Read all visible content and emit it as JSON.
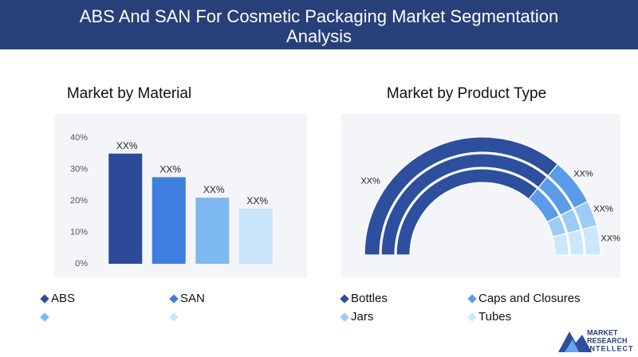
{
  "header": {
    "title": "ABS And SAN For Cosmetic Packaging Market Segmentation Analysis"
  },
  "chart_data": [
    {
      "type": "bar",
      "title": "Market by Material",
      "categories": [
        "ABS",
        "SAN",
        null,
        null
      ],
      "values": [
        35,
        27.5,
        21,
        17.5
      ],
      "value_labels": [
        "XX%",
        "XX%",
        "XX%",
        "XX%"
      ],
      "colors": [
        "#2d4a98",
        "#3d7ee0",
        "#7db9f0",
        "#c8e5fa"
      ],
      "ylim": [
        0,
        40
      ],
      "yticks": [
        {
          "value": 0,
          "label": "0%"
        },
        {
          "value": 10,
          "label": "10%"
        },
        {
          "value": 20,
          "label": "20%"
        },
        {
          "value": 30,
          "label": "30%"
        },
        {
          "value": 40,
          "label": "40%"
        }
      ],
      "grid": false
    },
    {
      "type": "pie",
      "title": "Market by Product Type",
      "categories": [
        "Bottles",
        "Caps and Closures",
        "Jars",
        "Tubes"
      ],
      "values": [
        72,
        13,
        7,
        8
      ],
      "value_labels": [
        "XX%",
        "XX%",
        "XX%",
        "XX%"
      ],
      "colors": [
        "#2d4f9e",
        "#5b9be8",
        "#9ccbf3",
        "#cbe7fb"
      ]
    }
  ],
  "logo": {
    "lines": [
      "MARKET",
      "RESEARCH",
      "INTELLECT"
    ]
  }
}
